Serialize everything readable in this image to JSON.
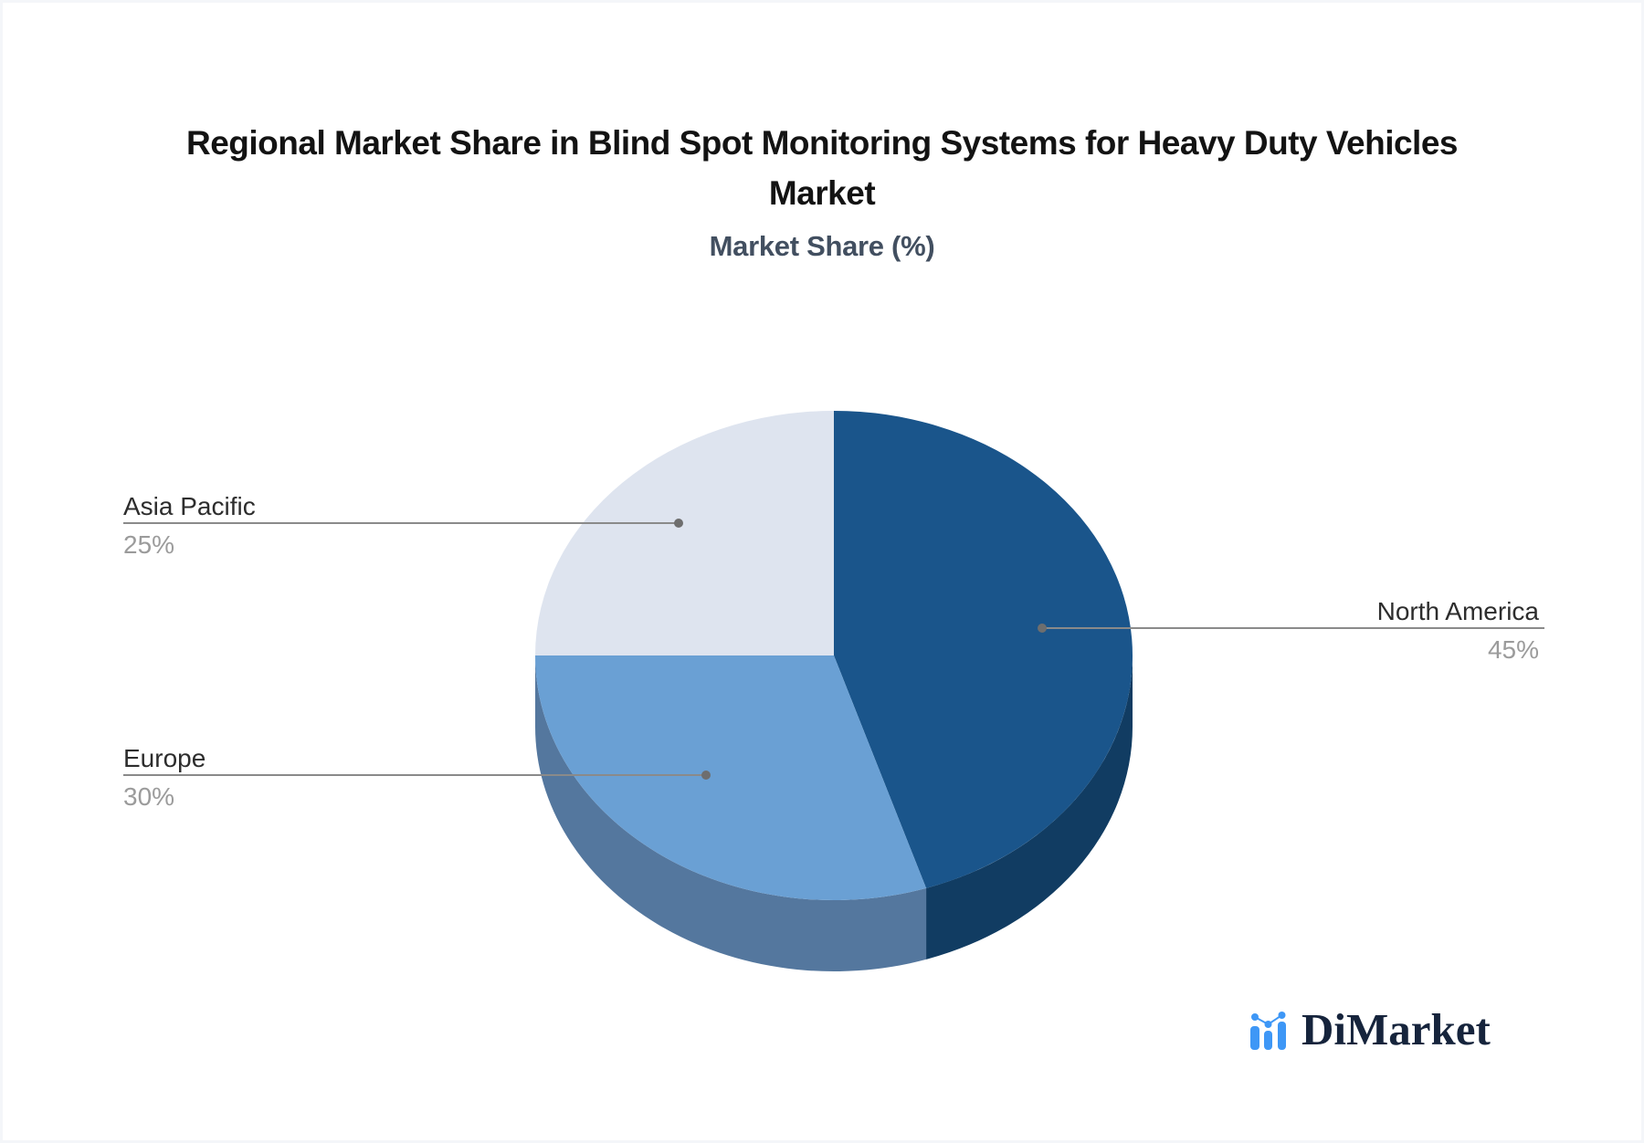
{
  "page": {
    "background": "#ffffff",
    "border_color": "#f4f6f9"
  },
  "header": {
    "title": "Regional Market Share in Blind Spot Monitoring Systems for Heavy Duty Vehicles Market",
    "title_lines": [
      "Regional Market Share in Blind Spot Monitoring Systems for Heavy Duty Vehicles",
      "Market"
    ],
    "subtitle": "Market Share (%)"
  },
  "chart_data": {
    "type": "pie",
    "title": "Market Share (%)",
    "unit": "%",
    "effect": "3d",
    "start_angle_deg": 0,
    "direction": "clockwise",
    "legend": "none",
    "slices": [
      {
        "label": "North America",
        "value": 45,
        "display": "45%",
        "color": "#1A558B",
        "side_color": "#113C62",
        "callout_side": "right"
      },
      {
        "label": "Europe",
        "value": 30,
        "display": "30%",
        "color": "#6AA0D4",
        "side_color": "#54779E",
        "callout_side": "left"
      },
      {
        "label": "Asia Pacific",
        "value": 25,
        "display": "25%",
        "color": "#DEE4EF",
        "side_color": "#C2CBDA",
        "callout_side": "left"
      }
    ],
    "connector_color": "#8a8a8a",
    "connector_dot_color": "#6e6e6e",
    "label_name_color": "#2d2d2d",
    "label_pct_color": "#9b9b9b"
  },
  "logo": {
    "text": "DiMarket",
    "icon": "bar-line-chart-icon",
    "icon_color": "#3E97F6",
    "text_color": "#16243C"
  }
}
